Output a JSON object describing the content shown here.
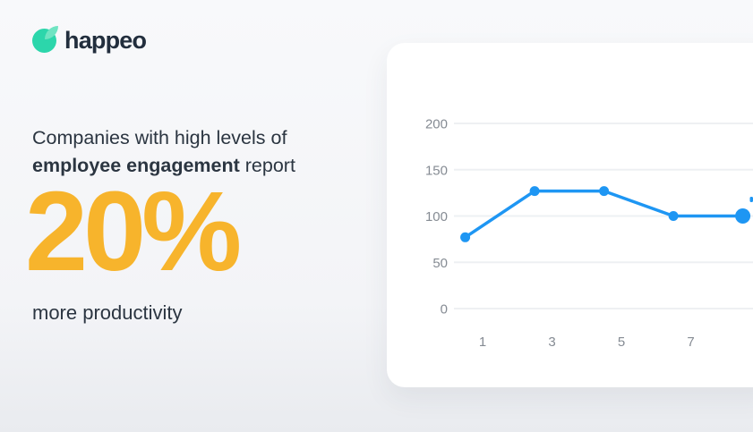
{
  "brand": {
    "name": "happeo",
    "icon": "happeo-leaf-icon",
    "icon_color": "#2cd6ab",
    "icon_leaf_color": "#6fe4c2",
    "text_color": "#222e3d"
  },
  "stat": {
    "intro_line1": "Companies with high levels of",
    "intro_bold": "employee engagement",
    "intro_rest": " report",
    "value": "20%",
    "value_color": "#f7b42c",
    "caption": "more productivity",
    "text_color": "#2b3541"
  },
  "chart_data": {
    "type": "line",
    "title": "",
    "xlabel": "",
    "ylabel": "",
    "x": [
      0.5,
      2.5,
      4.5,
      6.5,
      8.5
    ],
    "values": [
      77,
      127,
      127,
      100,
      100
    ],
    "xticks": [
      "1",
      "3",
      "5",
      "7"
    ],
    "xtick_positions": [
      1,
      3,
      5,
      7
    ],
    "yticks": [
      "200",
      "150",
      "100",
      "50",
      "0"
    ],
    "ytick_values": [
      200,
      150,
      100,
      50,
      0
    ],
    "ylim": [
      0,
      225
    ],
    "grid": "horizontal-only",
    "legend": "none",
    "line_color": "#1e96f3",
    "marker": "circle",
    "marker_radius": 5.5,
    "highlight_last_point": true,
    "highlight_radius": 8.5,
    "grid_color": "#eef0f3",
    "tick_color": "#858b93",
    "card_background": "#ffffff"
  }
}
